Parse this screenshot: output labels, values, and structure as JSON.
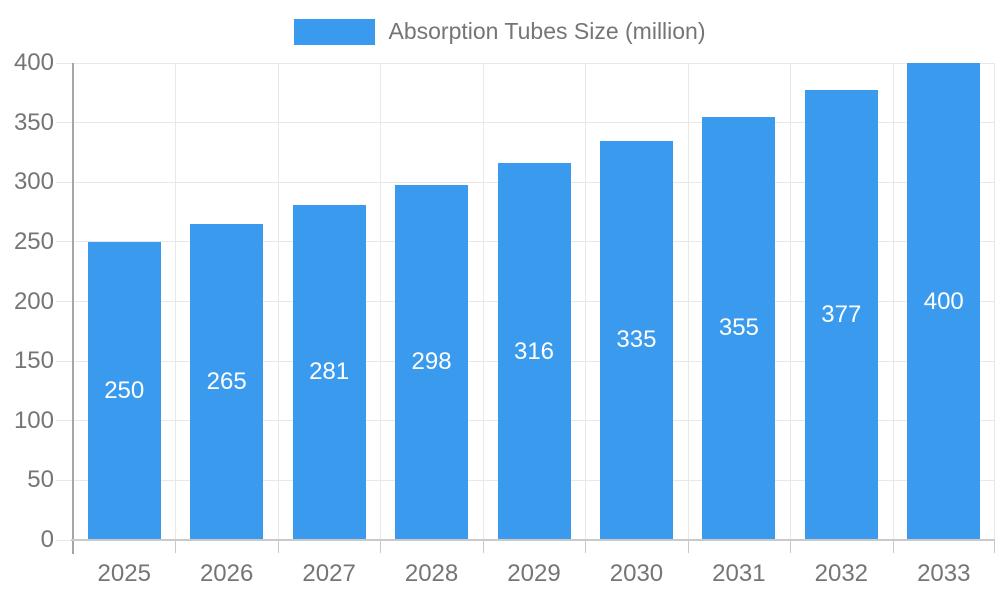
{
  "legend": {
    "label": "Absorption Tubes Size (million)"
  },
  "chart_data": {
    "type": "bar",
    "title": "Absorption Tubes Size (million)",
    "series_name": "Absorption Tubes Size (million)",
    "categories": [
      "2025",
      "2026",
      "2027",
      "2028",
      "2029",
      "2030",
      "2031",
      "2032",
      "2033"
    ],
    "values": [
      250,
      265,
      281,
      298,
      316,
      335,
      355,
      377,
      400
    ],
    "value_labels_shown": [
      "250",
      "265",
      "281",
      "298",
      "316",
      "335",
      "355",
      "377",
      "400"
    ],
    "xlabel": "",
    "ylabel": "",
    "ylim": [
      0,
      400
    ],
    "yticks": [
      0,
      50,
      100,
      150,
      200,
      250,
      300,
      350,
      400
    ],
    "grid": "on",
    "legend_position": "top-center",
    "value_label_position": "inside-center",
    "bar_color": "#3A9BEE",
    "value_label_color": "#ffffff"
  }
}
